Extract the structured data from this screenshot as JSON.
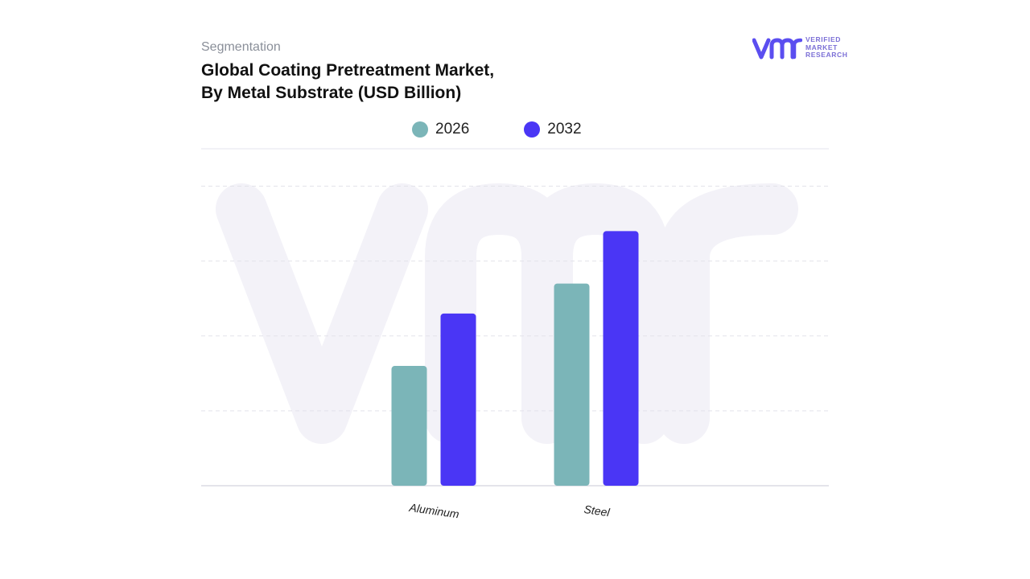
{
  "header": {
    "segment_label": "Segmentation",
    "title_line1": "Global Coating Pretreatment Market,",
    "title_line2": "By Metal Substrate (USD Billion)"
  },
  "brand": {
    "line1": "VERIFIED",
    "line2": "MARKET",
    "line3": "RESEARCH",
    "color": "#5b4ef0"
  },
  "chart_data": {
    "type": "bar",
    "title": "Global Coating Pretreatment Market, By Metal Substrate (USD Billion)",
    "categories": [
      "Aluminum",
      "Steel"
    ],
    "series": [
      {
        "name": "2026",
        "color": "#7bb5b8",
        "values": [
          1.6,
          2.7
        ]
      },
      {
        "name": "2032",
        "color": "#4a36f5",
        "values": [
          2.3,
          3.4
        ]
      }
    ],
    "ylim": [
      0,
      4.5
    ],
    "grid": true,
    "legend_position": "top-center",
    "watermark": "vmr"
  }
}
